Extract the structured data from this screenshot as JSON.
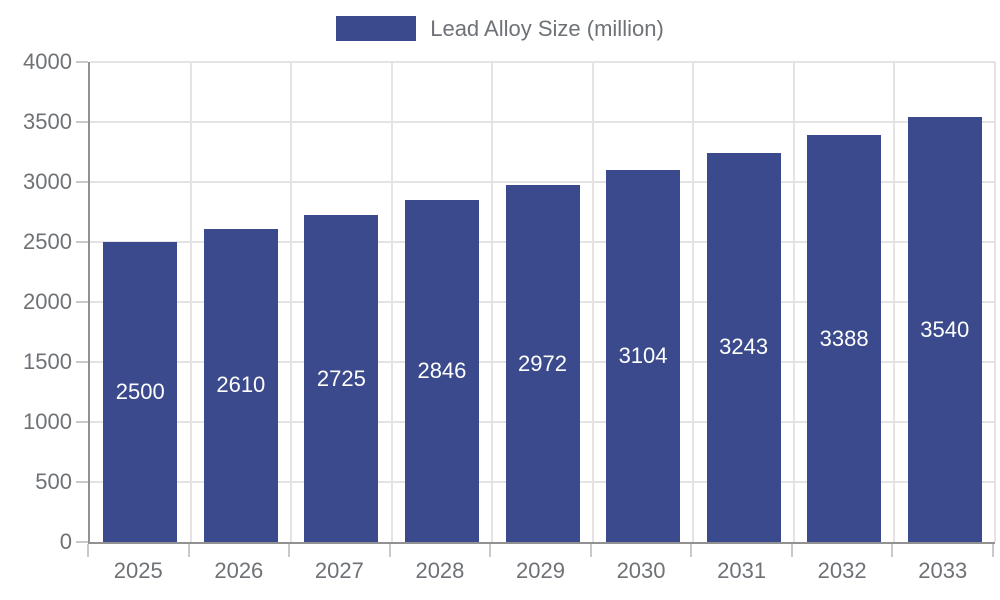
{
  "chart_data": {
    "type": "bar",
    "title": "",
    "legend": "Lead Alloy Size (million)",
    "legend_position": "top-center",
    "categories": [
      "2025",
      "2026",
      "2027",
      "2028",
      "2029",
      "2030",
      "2031",
      "2032",
      "2033"
    ],
    "values": [
      2500,
      2610,
      2725,
      2846,
      2972,
      3104,
      3243,
      3388,
      3540
    ],
    "xlabel": "",
    "ylabel": "",
    "ylim": [
      0,
      4000
    ],
    "yticks": [
      0,
      500,
      1000,
      1500,
      2000,
      2500,
      3000,
      3500,
      4000
    ],
    "grid": true,
    "value_labels_position": "inside-center",
    "colors": {
      "bar": "#3a4a8c",
      "value_label": "#ffffff",
      "axis_text": "#6e7277",
      "grid": "#e4e4e4",
      "axis_line": "#919191",
      "tick": "#c9c9c9",
      "background": "#ffffff"
    }
  }
}
